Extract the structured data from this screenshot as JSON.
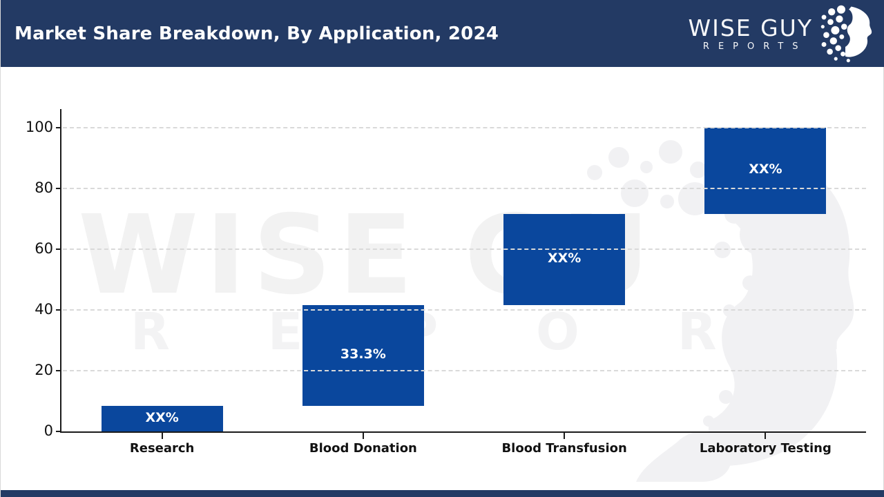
{
  "header": {
    "title": "Market Share Breakdown, By Application, 2024"
  },
  "logo": {
    "line1": "WISE GUY",
    "line2": "REPORTS"
  },
  "watermark": {
    "line1": "WISE GU",
    "line2": "R E P O R T S"
  },
  "colors": {
    "header_bg": "#233a64",
    "bar_blue": "#0a479d",
    "gridline": "#d9d9d9",
    "axis": "#1a1a1a",
    "watermark": "#f2f2f2",
    "label_text": "#111111",
    "bar_label_text": "#ffffff"
  },
  "chart_data": {
    "type": "bar",
    "subtype": "waterfall",
    "title": "Market Share Breakdown, By Application, 2024",
    "xlabel": "",
    "ylabel": "",
    "categories": [
      "Research",
      "Blood Donation",
      "Blood Transfusion",
      "Laboratory Testing"
    ],
    "segments": [
      {
        "category": "Research",
        "start": 0,
        "end": 8.3,
        "label": "XX%"
      },
      {
        "category": "Blood Donation",
        "start": 8.3,
        "end": 41.6,
        "label": "33.3%"
      },
      {
        "category": "Blood Transfusion",
        "start": 41.6,
        "end": 71.6,
        "label": "XX%"
      },
      {
        "category": "Laboratory Testing",
        "start": 71.6,
        "end": 100,
        "label": "XX%"
      }
    ],
    "yticks": [
      0,
      20,
      40,
      60,
      80,
      100
    ],
    "ylim": [
      0,
      107
    ],
    "grid": true,
    "grid_style": "dashed",
    "legend": false,
    "bar_color": "#0a479d"
  }
}
